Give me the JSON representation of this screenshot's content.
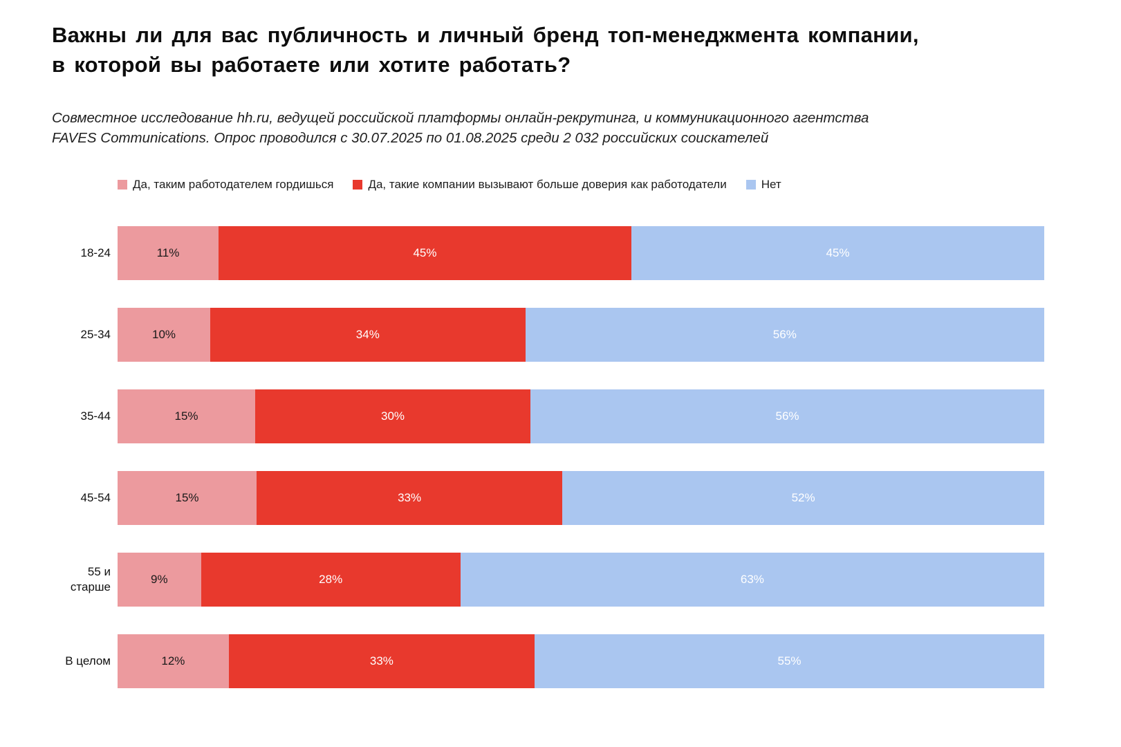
{
  "header": {
    "title_line1": "Важны ли для вас публичность и личный бренд топ-менеджмента компании,",
    "title_line2": "в которой вы работаете или хотите работать?",
    "subtitle_line1": "Совместное исследование hh.ru, ведущей российской платформы онлайн-рекрутинга, и коммуникационного агентства",
    "subtitle_line2": "FAVES Communications. Опрос проводился с 30.07.2025 по 01.08.2025 среди 2 032 российских соискателей"
  },
  "colors": {
    "pink": "#ec9a9e",
    "red": "#e8392d",
    "blue": "#aac6f0",
    "label_on_pink": "#1a1a1a",
    "label_on_red": "#ffffff",
    "label_on_blue": "#ffffff"
  },
  "chart_data": {
    "type": "bar",
    "orientation": "horizontal-stacked",
    "title": "Важны ли для вас публичность и личный бренд топ-менеджмента компании, в которой вы работаете или хотите работать?",
    "value_format": "percent",
    "legend_position": "top",
    "grid": false,
    "categories": [
      "18-24",
      "25-34",
      "35-44",
      "45-54",
      "55 и старше",
      "В целом"
    ],
    "series": [
      {
        "name": "Да, таким работодателем гордишься",
        "color": "#ec9a9e",
        "text_color": "#1a1a1a",
        "values": [
          11,
          10,
          15,
          15,
          9,
          12
        ]
      },
      {
        "name": "Да, такие компании вызывают больше доверия как работодатели",
        "color": "#e8392d",
        "text_color": "#ffffff",
        "values": [
          45,
          34,
          30,
          33,
          28,
          33
        ]
      },
      {
        "name": "Нет",
        "color": "#aac6f0",
        "text_color": "#ffffff",
        "values": [
          45,
          56,
          56,
          52,
          63,
          55
        ]
      }
    ]
  }
}
